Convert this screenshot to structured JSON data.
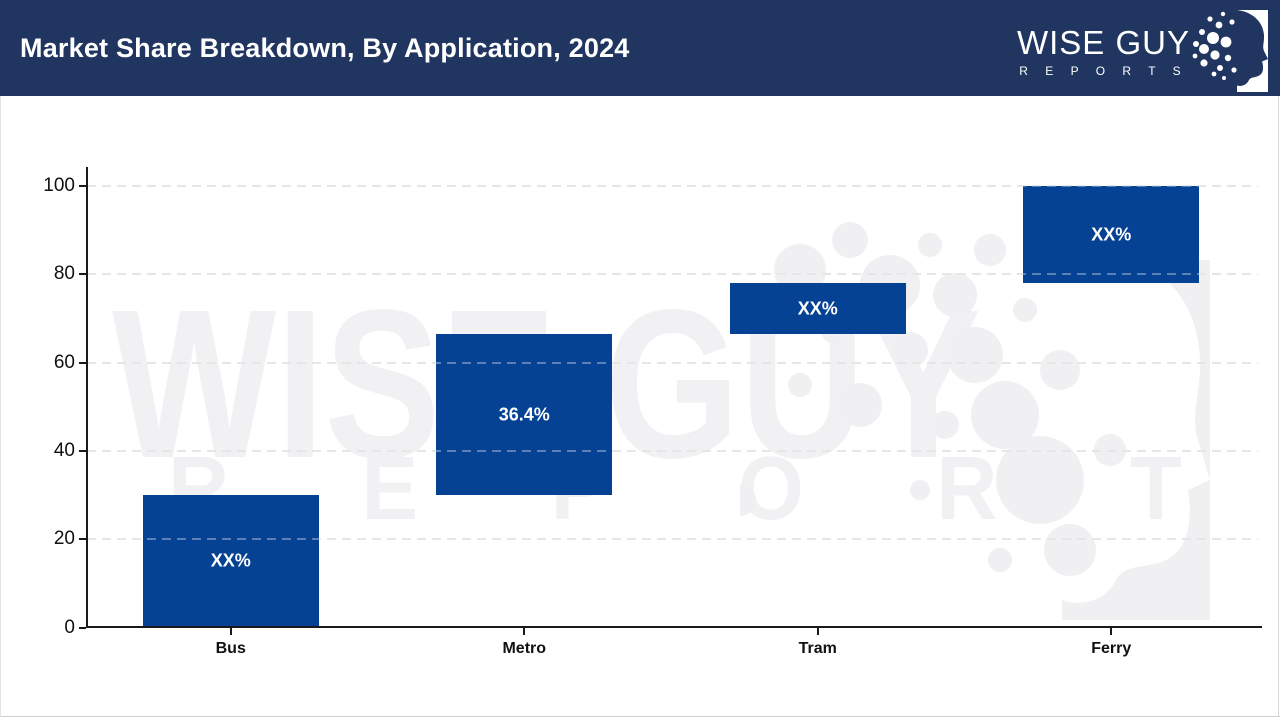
{
  "header": {
    "title": "Market Share Breakdown, By Application, 2024",
    "bg_color": "#203560",
    "logo": {
      "line1": "WISE GUY",
      "line2": "R E P O R T S"
    }
  },
  "watermark": {
    "line1": "WISE GUY",
    "line2": "R E P O R T S"
  },
  "chart_data": {
    "type": "bar",
    "subtype": "waterfall",
    "title": "Market Share Breakdown, By Application, 2024",
    "xlabel": "",
    "ylabel": "",
    "categories": [
      "Bus",
      "Metro",
      "Tram",
      "Ferry"
    ],
    "segments": [
      {
        "category": "Bus",
        "start": 0,
        "end": 30,
        "label": "XX%"
      },
      {
        "category": "Metro",
        "start": 30,
        "end": 66.4,
        "label": "36.4%"
      },
      {
        "category": "Tram",
        "start": 66.4,
        "end": 78,
        "label": "XX%"
      },
      {
        "category": "Ferry",
        "start": 78,
        "end": 100,
        "label": "XX%"
      }
    ],
    "yticks": [
      0,
      20,
      40,
      60,
      80,
      100
    ],
    "ylim": [
      0,
      104
    ],
    "grid": {
      "axis": "y",
      "style": "dashed",
      "color": "#d9d9d9"
    },
    "legend": null,
    "bar_color": "#064293",
    "bar_label_color": "#ffffff"
  }
}
